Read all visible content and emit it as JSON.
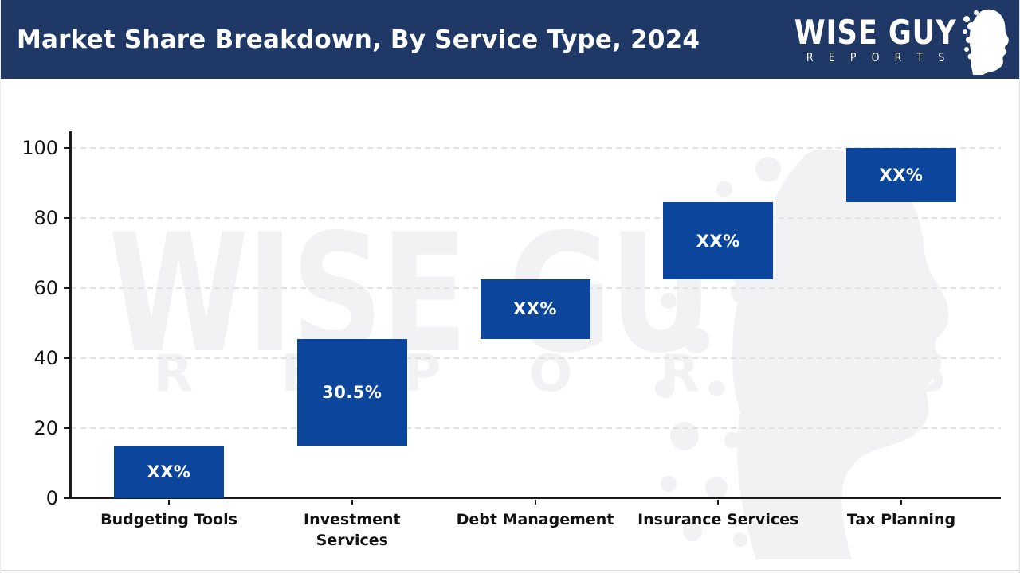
{
  "header": {
    "title": "Market Share Breakdown, By Service Type, 2024",
    "logo": {
      "line1": "WISE GUY",
      "line2": "R E P O R T S"
    }
  },
  "watermark": {
    "line1": "WISE GUY",
    "line2": "R E P O R T S"
  },
  "colors": {
    "header_bg": "#1f3866",
    "bar": "#0b469c",
    "bar_label": "#ffffff",
    "axis": "#1a1a1a",
    "gridline": "#e2e2e2",
    "watermark": "#f2f2f4",
    "title_text": "#ffffff"
  },
  "chart_data": {
    "type": "bar",
    "variant": "floating-waterfall",
    "title": "Market Share Breakdown, By Service Type, 2024",
    "categories": [
      "Budgeting Tools",
      "Investment\nServices",
      "Debt Management",
      "Insurance Services",
      "Tax Planning"
    ],
    "bars": [
      {
        "category": "Budgeting Tools",
        "from": 0,
        "to": 15,
        "label": "XX%"
      },
      {
        "category": "Investment Services",
        "from": 15,
        "to": 45.5,
        "label": "30.5%"
      },
      {
        "category": "Debt Management",
        "from": 45.5,
        "to": 62.5,
        "label": "XX%"
      },
      {
        "category": "Insurance Services",
        "from": 62.5,
        "to": 84.5,
        "label": "XX%"
      },
      {
        "category": "Tax Planning",
        "from": 84.5,
        "to": 100,
        "label": "XX%"
      }
    ],
    "xlabel": "",
    "ylabel": "",
    "ylim": [
      0,
      104
    ],
    "yticks": [
      0,
      20,
      40,
      60,
      80,
      100
    ],
    "grid": "horizontal-dashed",
    "legend": "none",
    "bar_color": "#0b469c"
  }
}
